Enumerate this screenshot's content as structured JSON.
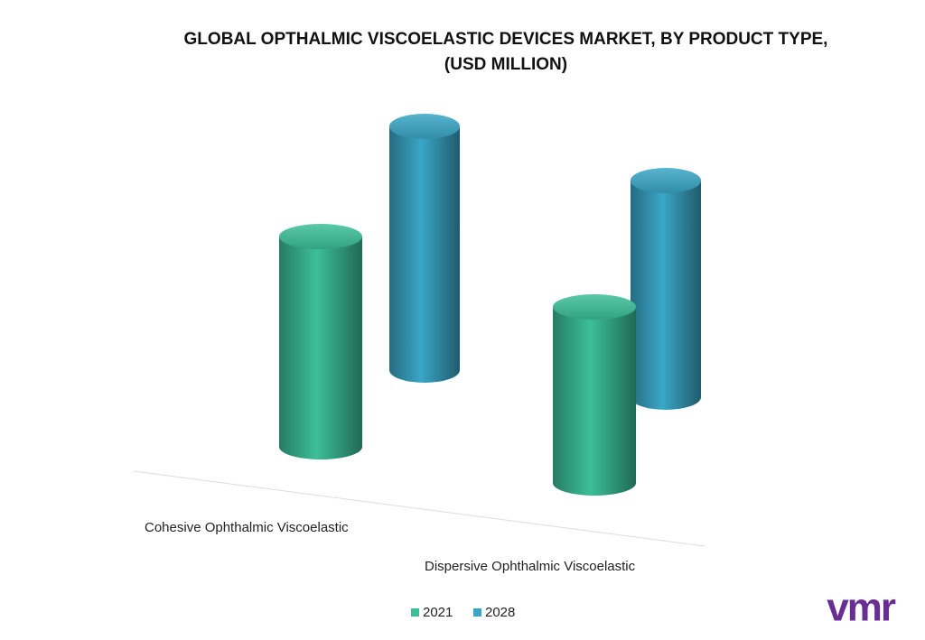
{
  "chart_data": {
    "type": "cylinder",
    "title": "GLOBAL OPTHALMIC VISCOELASTIC DEVICES MARKET, BY PRODUCT TYPE, (USD MILLION)",
    "categories": [
      "Cohesive Ophthalmic Viscoelastic",
      "Dispersive Ophthalmic Viscoelastic"
    ],
    "series": [
      {
        "name": "2021",
        "color": "#3cbf98",
        "values": [
          233,
          195
        ]
      },
      {
        "name": "2028",
        "color": "#3aa6c6",
        "values": [
          270,
          240
        ]
      }
    ]
  },
  "logo": "vmr"
}
